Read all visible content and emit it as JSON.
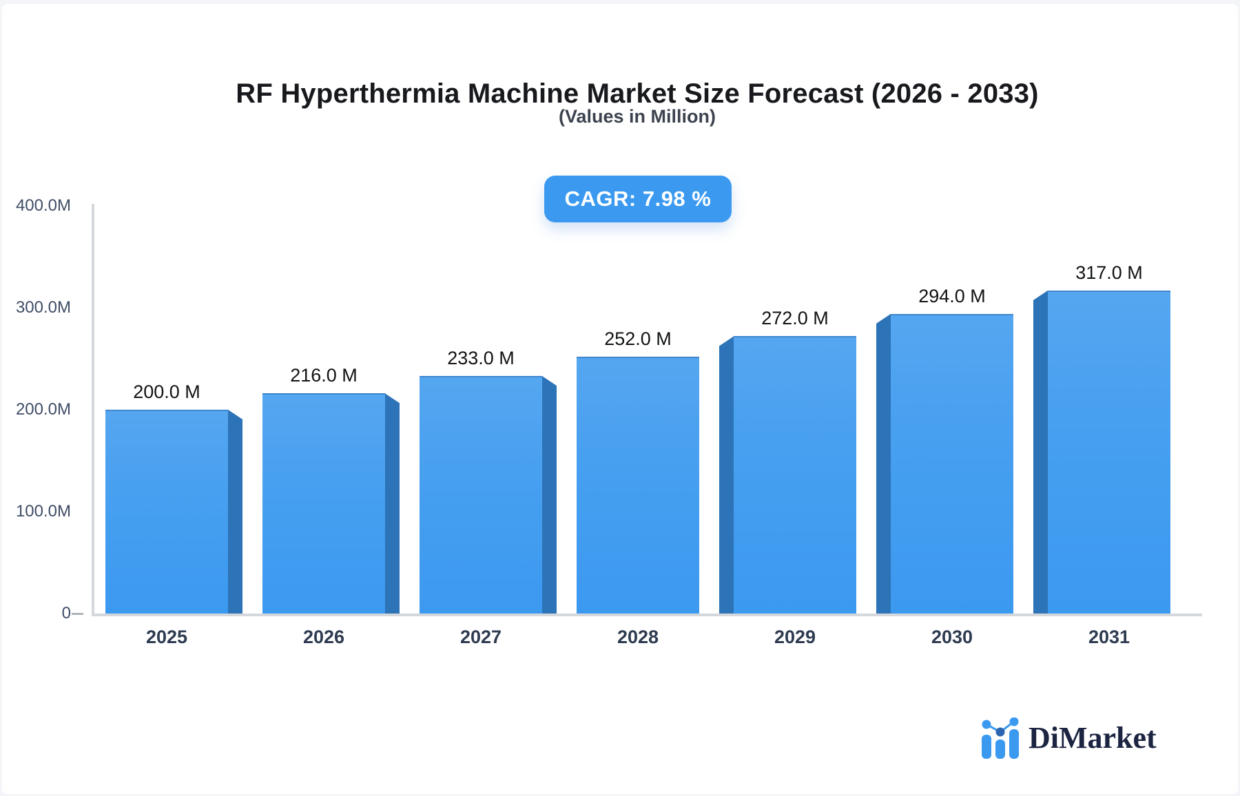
{
  "page": {
    "title": "RF Hyperthermia Machine Market Size Forecast (2026 - 2033)",
    "subtitle": "(Values in Million)",
    "cagr_badge_label": "CAGR: 7.98 %",
    "brand_name": "DiMarket"
  },
  "colors": {
    "badge_blue": "#3b9af0",
    "bar_face_top": "#55a6f0",
    "bar_face_bottom": "#3c99f0",
    "bar_side_dark": "#2d73b7",
    "axis_gray": "#d4d7dc",
    "logo_navy": "#1b2440",
    "logo_blue": "#3b9af0"
  },
  "chart_data": {
    "type": "bar",
    "title": "RF Hyperthermia Machine Market Size Forecast (2026 - 2033)",
    "subtitle": "(Values in Million)",
    "cagr_percent": 7.98,
    "categories": [
      "2025",
      "2026",
      "2027",
      "2028",
      "2029",
      "2030",
      "2031"
    ],
    "values": [
      200.0,
      216.0,
      233.0,
      252.0,
      272.0,
      294.0,
      317.0
    ],
    "bar_labels": [
      "200.0 M",
      "216.0 M",
      "233.0 M",
      "252.0 M",
      "272.0 M",
      "294.0 M",
      "317.0 M"
    ],
    "unit": "Million",
    "ylim": [
      0,
      400
    ],
    "y_ticks": [
      {
        "value": 400,
        "label": "400.0M"
      },
      {
        "value": 300,
        "label": "300.0M"
      },
      {
        "value": 200,
        "label": "200.0M"
      },
      {
        "value": 100,
        "label": "100.0M"
      },
      {
        "value": 0,
        "label": "0"
      }
    ],
    "grid": false,
    "legend": "none",
    "bar_style": "3d-bevel-blue"
  }
}
